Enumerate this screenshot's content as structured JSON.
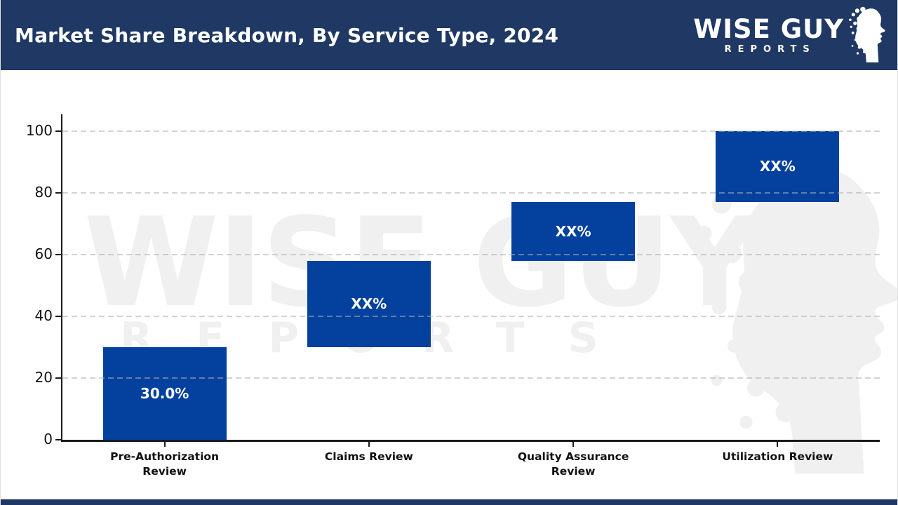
{
  "header": {
    "title": "Market Share Breakdown, By Service Type, 2024",
    "logo": {
      "wordmark": "WISE GUY",
      "subtext": "REPORTS"
    }
  },
  "watermark": {
    "line1": "WISE GUY",
    "line2": "REPORTS"
  },
  "colors": {
    "header_bg": "#1f3864",
    "footer_bg": "#1f3864",
    "bar": "#04419e",
    "axis": "#1a1a1a",
    "grid_dash": "#cfcfcf",
    "title_text": "#ffffff",
    "bar_label_text": "#ffffff",
    "watermark": "#f0f0f0"
  },
  "chart_data": {
    "type": "bar",
    "subtype": "waterfall-steps",
    "title": "Market Share Breakdown, By Service Type, 2024",
    "categories": [
      "Pre-Authorization\nReview",
      "Claims Review",
      "Quality Assurance\nReview",
      "Utilization Review"
    ],
    "segments": [
      {
        "name": "Pre-Authorization Review",
        "label": "30.0%",
        "start": 0,
        "end": 30
      },
      {
        "name": "Claims Review",
        "label": "XX%",
        "start": 30,
        "end": 58
      },
      {
        "name": "Quality Assurance Review",
        "label": "XX%",
        "start": 58,
        "end": 77
      },
      {
        "name": "Utilization Review",
        "label": "XX%",
        "start": 77,
        "end": 100
      }
    ],
    "yticks": [
      0,
      20,
      40,
      60,
      80,
      100
    ],
    "ylim": [
      0,
      105
    ],
    "xlabel": "",
    "ylabel": "",
    "grid": "horizontal-dashed-over-bars",
    "legend": "none"
  }
}
